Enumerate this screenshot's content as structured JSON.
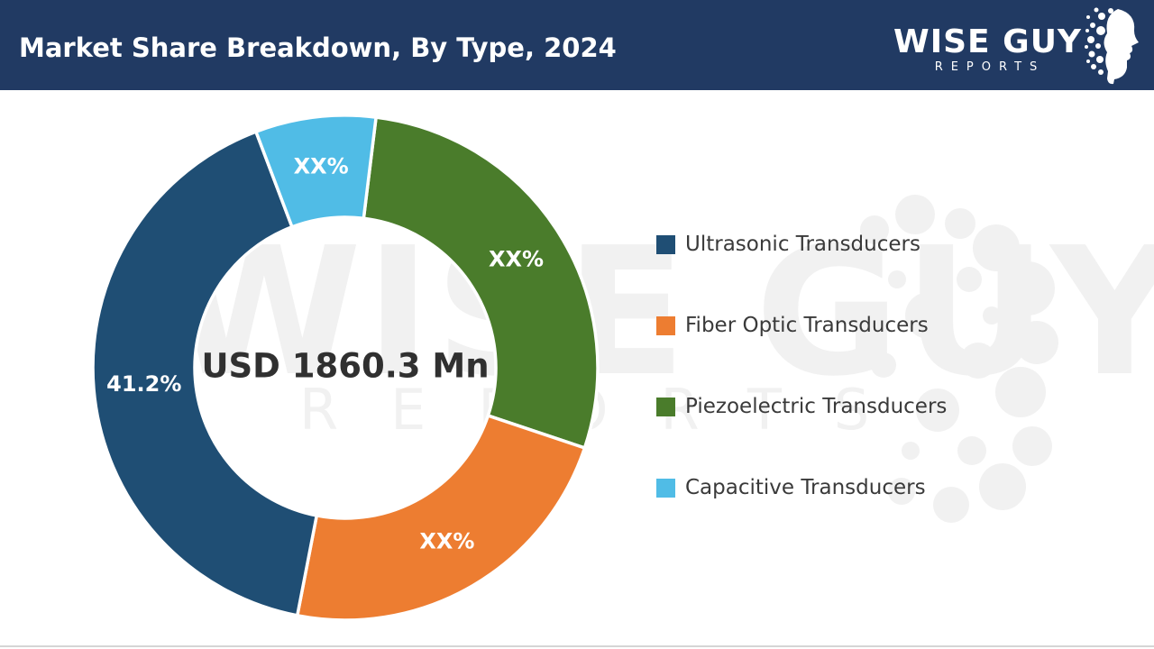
{
  "header": {
    "title": "Market Share Breakdown, By Type, 2024",
    "logo": {
      "line1": "WISE GUY",
      "line2": "REPORTS"
    },
    "bg_color": "#213a63"
  },
  "chart_data": {
    "type": "pie",
    "subtype": "donut",
    "title": "Market Share Breakdown, By Type, 2024",
    "center_label": "USD 1860.3 Mn",
    "legend_position": "right",
    "start_angle_deg": 7,
    "draw_sequence": [
      2,
      1,
      0,
      3
    ],
    "slices": [
      {
        "label": "Ultrasonic Transducers",
        "value_pct": 41.2,
        "display": "41.2%",
        "color": "#1f4e74"
      },
      {
        "label": "Fiber Optic Transducers",
        "value_pct": 22.9,
        "display": "XX%",
        "color": "#ed7d31"
      },
      {
        "label": "Piezoelectric Transducers",
        "value_pct": 28.2,
        "display": "XX%",
        "color": "#4a7c2b"
      },
      {
        "label": "Capacitive Transducers",
        "value_pct": 7.7,
        "display": "XX%",
        "color": "#50bce6"
      }
    ]
  },
  "watermark": {
    "line1": "WISE GUY",
    "line2": "REPORTS"
  }
}
